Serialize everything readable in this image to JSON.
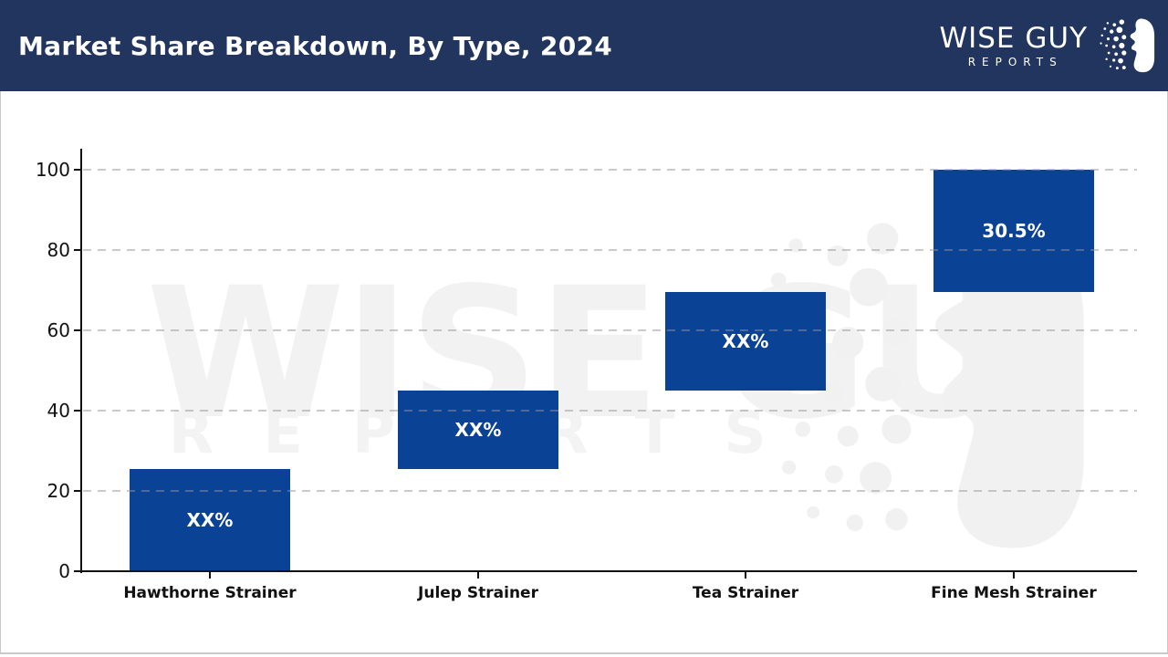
{
  "header": {
    "title": "Market Share Breakdown, By Type, 2024",
    "bg_color": "#21355e",
    "logo": {
      "line1": "WISE GUY",
      "line2": "REPORTS"
    }
  },
  "watermark": {
    "big_text": "WISE GU",
    "sub_text": "REPORTS"
  },
  "chart_data": {
    "type": "bar",
    "variant": "floating_segment_waterfall",
    "title": "Market Share Breakdown, By Type, 2024",
    "categories": [
      "Hawthorne Strainer",
      "Julep Strainer",
      "Tea Strainer",
      "Fine Mesh Strainer"
    ],
    "segments": [
      {
        "category": "Hawthorne Strainer",
        "start": 0,
        "end": 25.5,
        "label": "XX%"
      },
      {
        "category": "Julep Strainer",
        "start": 25.5,
        "end": 45.0,
        "label": "XX%"
      },
      {
        "category": "Tea Strainer",
        "start": 45.0,
        "end": 69.5,
        "label": "XX%"
      },
      {
        "category": "Fine Mesh Strainer",
        "start": 69.5,
        "end": 100.0,
        "label": "30.5%"
      }
    ],
    "xlabel": "",
    "ylabel": "",
    "y_ticks": [
      0,
      20,
      40,
      60,
      80,
      100
    ],
    "grid_values": [
      20,
      40,
      60,
      80,
      100
    ],
    "ylim": [
      0,
      105
    ],
    "grid": "horizontal-dashed",
    "legend": null,
    "bar_color": "#0a4296",
    "bar_label_color": "#ffffff",
    "axis_color": "#111111"
  }
}
